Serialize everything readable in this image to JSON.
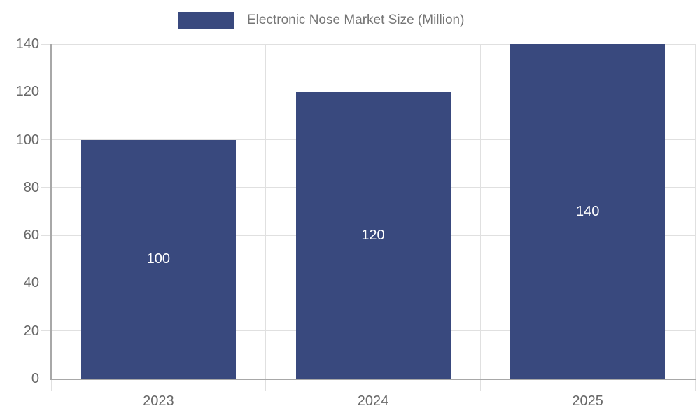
{
  "chart_data": {
    "type": "bar",
    "title": "",
    "legend": "Electronic Nose Market Size (Million)",
    "legend_position": "top",
    "categories": [
      "2023",
      "2024",
      "2025"
    ],
    "values": [
      100,
      120,
      140
    ],
    "data_labels": [
      "100",
      "120",
      "140"
    ],
    "xlabel": "",
    "ylabel": "",
    "ylim": [
      0,
      140
    ],
    "yticks": [
      0,
      20,
      40,
      60,
      80,
      100,
      120,
      140
    ],
    "grid": true,
    "colors": {
      "bar": "#39497E",
      "axis": "#a8a8a8",
      "gridline": "#e0e0e0",
      "tick_label": "#686868",
      "legend_text": "#757575",
      "data_label": "#ffffff",
      "background": "#ffffff"
    }
  }
}
